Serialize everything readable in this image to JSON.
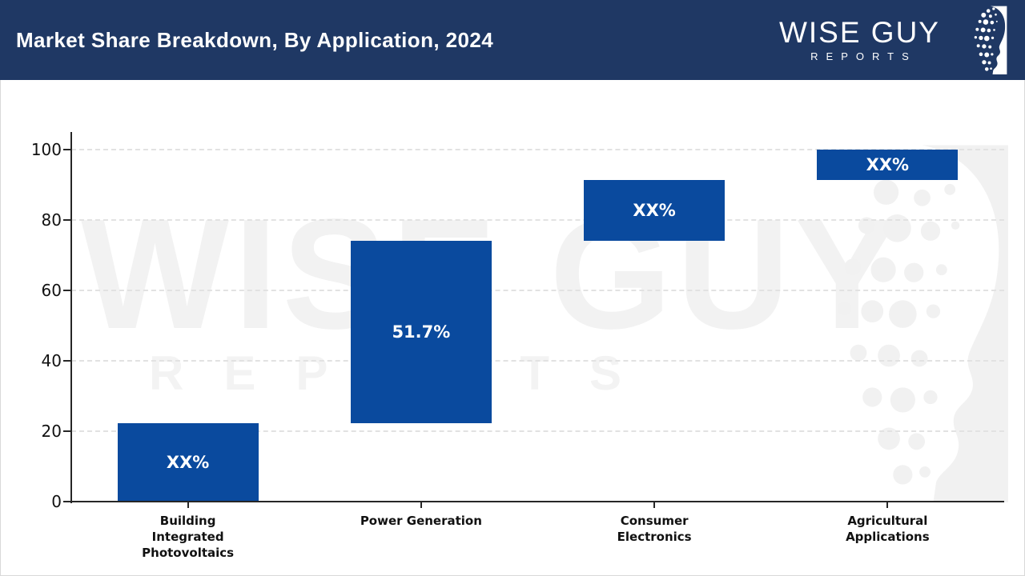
{
  "header": {
    "title": "Market Share Breakdown, By Application, 2024",
    "logo": {
      "line1": "WISE GUY",
      "line2": "REPORTS",
      "icon": "dot-face-icon"
    }
  },
  "watermark": {
    "line1": "WISE GUY",
    "line2": "REPORTS"
  },
  "colors": {
    "header_bg": "#1F3864",
    "bar": "#0A4A9E",
    "grid": "#E2E2E2",
    "axis": "#262626",
    "bar_label": "#FFFFFF",
    "text": "#111111",
    "watermark": "#F2F2F2",
    "border": "#D9D9D9"
  },
  "chart_data": {
    "type": "bar",
    "subtype": "waterfall",
    "title": "Market Share Breakdown, By Application, 2024",
    "categories": [
      "Building Integrated Photovoltaics",
      "Power Generation",
      "Consumer Electronics",
      "Agricultural Applications"
    ],
    "category_label_lines": [
      [
        "Building",
        "Integrated",
        "Photovoltaics"
      ],
      [
        "Power Generation"
      ],
      [
        "Consumer",
        "Electronics"
      ],
      [
        "Agricultural",
        "Applications"
      ]
    ],
    "segments": [
      {
        "category": "Building Integrated Photovoltaics",
        "start": 0,
        "end": 22.3,
        "value_label": "XX%"
      },
      {
        "category": "Power Generation",
        "start": 22.3,
        "end": 74,
        "value_label": "51.7%"
      },
      {
        "category": "Consumer Electronics",
        "start": 74,
        "end": 91.3,
        "value_label": "XX%"
      },
      {
        "category": "Agricultural Applications",
        "start": 91.3,
        "end": 100,
        "value_label": "XX%"
      }
    ],
    "xlabel": "",
    "ylabel": "",
    "ylim": [
      0,
      100
    ],
    "yticks": [
      0,
      20,
      40,
      60,
      80,
      100
    ],
    "grid": "horizontal-dashed",
    "legend": "none"
  }
}
